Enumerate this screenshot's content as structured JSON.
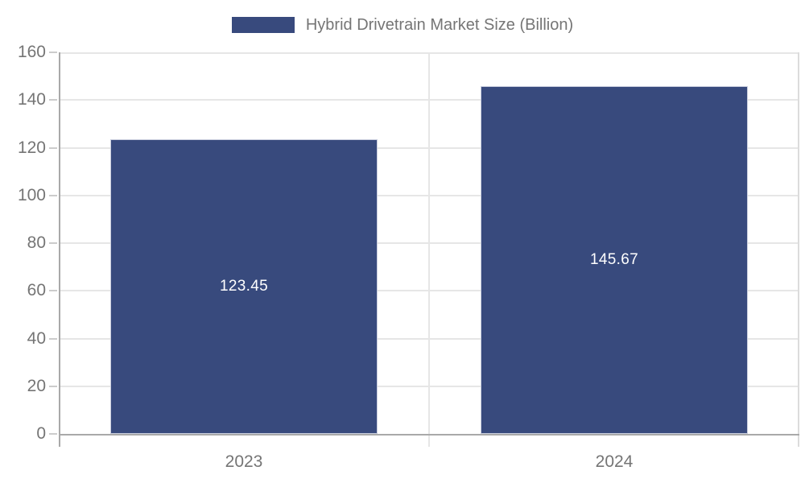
{
  "legend": {
    "label": "Hybrid Drivetrain Market Size (Billion)"
  },
  "chart_data": {
    "type": "bar",
    "title": "Hybrid Drivetrain Market Size (Billion)",
    "categories": [
      "2023",
      "2024"
    ],
    "values": [
      123.45,
      145.67
    ],
    "value_labels": [
      "123.45",
      "145.67"
    ],
    "xlabel": "",
    "ylabel": "",
    "ylim": [
      0,
      160
    ],
    "yticks": [
      0,
      20,
      40,
      60,
      80,
      100,
      120,
      140,
      160
    ],
    "grid": true,
    "legend_position": "top-center",
    "bar_band_fraction": 0.722,
    "colors": {
      "bar": "#384A7D",
      "bar_border": "#C9CEDE",
      "bar_label": "#FFFFFF",
      "grid": "#E6E6E6",
      "boundary_tick": "#DCDCDC",
      "axis": "#A9A9A9",
      "ytick_mark": "#CCCCCC",
      "text": "#757575",
      "background": "#FFFFFF"
    }
  }
}
